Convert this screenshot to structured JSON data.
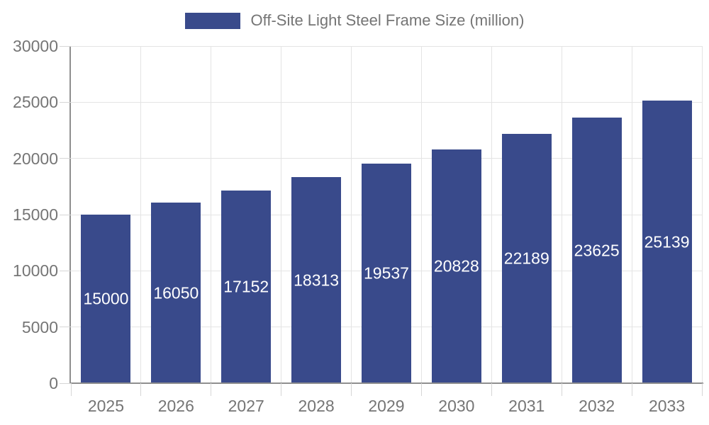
{
  "chart_data": {
    "type": "bar",
    "title": "Off-Site Light Steel Frame Size (million)",
    "categories": [
      "2025",
      "2026",
      "2027",
      "2028",
      "2029",
      "2030",
      "2031",
      "2032",
      "2033"
    ],
    "values": [
      15000,
      16050,
      17152,
      18313,
      19537,
      20828,
      22189,
      23625,
      25139
    ],
    "xlabel": "",
    "ylabel": "",
    "ylim": [
      0,
      30000
    ],
    "yticks": [
      0,
      5000,
      10000,
      15000,
      20000,
      25000,
      30000
    ],
    "legend_position": "top",
    "grid": true,
    "value_labels_inside_bars": true,
    "colors": {
      "bar": "#394A8B",
      "value_label": "#FFFFFF",
      "axis_text": "#757575",
      "grid_line": "#E4E4E4",
      "axis_line": "#8F8F8F",
      "tick_line": "#D6D6D6",
      "background": "#FFFFFF"
    }
  }
}
